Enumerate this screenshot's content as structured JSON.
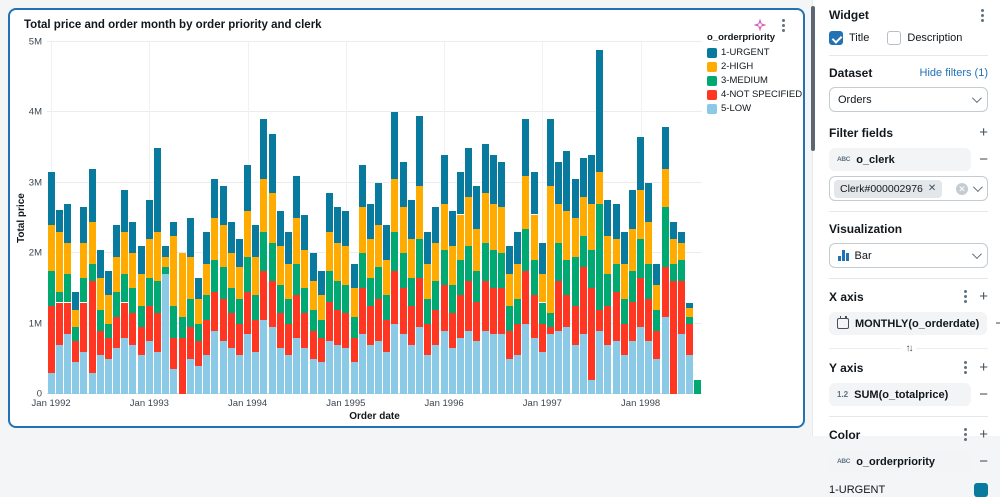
{
  "chart": {
    "title": "Total price and order month by order priority and clerk",
    "legend_title": "o_orderpriority",
    "xlabel": "Order date",
    "ylabel": "Total price"
  },
  "chart_data": {
    "type": "bar",
    "stacked": true,
    "title": "Total price and order month by order priority and clerk",
    "xlabel": "Order date",
    "ylabel": "Total price",
    "unit": "millions USD",
    "ylim_m": [
      0,
      5
    ],
    "yticks": [
      "0",
      "1M",
      "2M",
      "3M",
      "4M",
      "5M"
    ],
    "xtick_indices": [
      0,
      12,
      24,
      36,
      48,
      60,
      72
    ],
    "xtick_labels": [
      "Jan 1992",
      "Jan 1993",
      "Jan 1994",
      "Jan 1995",
      "Jan 1996",
      "Jan 1997",
      "Jan 1998"
    ],
    "legend_position": "top-right",
    "grid": true,
    "stack_bottom_to_top": [
      "5-LOW",
      "4-NOT SPECIFIED",
      "3-MEDIUM",
      "2-HIGH",
      "1-URGENT"
    ],
    "colors": {
      "1-URGENT": "#077a9d",
      "2-HIGH": "#ffab00",
      "3-MEDIUM": "#00a972",
      "4-NOT SPECIFIED": "#ff3621",
      "5-LOW": "#8bcae7"
    },
    "x": [
      "Jan 1992",
      "Feb 1992",
      "Mar 1992",
      "Apr 1992",
      "May 1992",
      "Jun 1992",
      "Jul 1992",
      "Aug 1992",
      "Sep 1992",
      "Oct 1992",
      "Nov 1992",
      "Dec 1992",
      "Jan 1993",
      "Feb 1993",
      "Mar 1993",
      "Apr 1993",
      "May 1993",
      "Jun 1993",
      "Jul 1993",
      "Aug 1993",
      "Sep 1993",
      "Oct 1993",
      "Nov 1993",
      "Dec 1993",
      "Jan 1994",
      "Feb 1994",
      "Mar 1994",
      "Apr 1994",
      "May 1994",
      "Jun 1994",
      "Jul 1994",
      "Aug 1994",
      "Sep 1994",
      "Oct 1994",
      "Nov 1994",
      "Dec 1994",
      "Jan 1995",
      "Feb 1995",
      "Mar 1995",
      "Apr 1995",
      "May 1995",
      "Jun 1995",
      "Jul 1995",
      "Aug 1995",
      "Sep 1995",
      "Oct 1995",
      "Nov 1995",
      "Dec 1995",
      "Jan 1996",
      "Feb 1996",
      "Mar 1996",
      "Apr 1996",
      "May 1996",
      "Jun 1996",
      "Jul 1996",
      "Aug 1996",
      "Sep 1996",
      "Oct 1996",
      "Nov 1996",
      "Dec 1996",
      "Jan 1997",
      "Feb 1997",
      "Mar 1997",
      "Apr 1997",
      "May 1997",
      "Jun 1997",
      "Jul 1997",
      "Aug 1997",
      "Sep 1997",
      "Oct 1997",
      "Nov 1997",
      "Dec 1997",
      "Jan 1998",
      "Feb 1998",
      "Mar 1998",
      "Apr 1998",
      "May 1998",
      "Jun 1998",
      "Jul 1998",
      "Aug 1998"
    ],
    "series": [
      {
        "name": "1-URGENT",
        "values_m": [
          0.75,
          0.32,
          0.55,
          0.25,
          0.5,
          0.75,
          0.4,
          0.35,
          0.45,
          0.6,
          0.45,
          0.4,
          0.55,
          1.2,
          0.15,
          0.2,
          0.0,
          0.55,
          0.3,
          0.45,
          0.55,
          0.55,
          0.45,
          0.4,
          0.65,
          0.45,
          0.85,
          0.85,
          0.5,
          0.45,
          0.6,
          0.5,
          0.4,
          0.35,
          0.55,
          0.5,
          0.5,
          0.35,
          0.6,
          0.5,
          0.6,
          0.5,
          0.95,
          0.65,
          0.55,
          1.0,
          0.45,
          0.5,
          0.7,
          0.5,
          0.6,
          0.7,
          0.6,
          0.7,
          0.7,
          0.65,
          0.4,
          0.45,
          0.8,
          0.6,
          0.45,
          0.95,
          0.6,
          0.85,
          0.55,
          0.55,
          0.7,
          1.73,
          0.5,
          0.5,
          0.45,
          0.55,
          0.75,
          0.55,
          0.3,
          0.6,
          0.25,
          0.15,
          0.08,
          0.0
        ]
      },
      {
        "name": "2-HIGH",
        "values_m": [
          0.65,
          0.85,
          0.45,
          0.25,
          0.5,
          0.6,
          0.45,
          0.4,
          0.5,
          0.6,
          0.5,
          0.45,
          0.55,
          0.7,
          0.15,
          1.0,
          0.9,
          0.6,
          0.35,
          0.45,
          0.6,
          0.6,
          0.5,
          0.45,
          0.65,
          0.55,
          0.75,
          0.7,
          0.55,
          0.5,
          0.65,
          0.55,
          0.4,
          0.35,
          0.55,
          0.55,
          0.55,
          0.4,
          0.65,
          0.55,
          0.6,
          0.5,
          0.75,
          0.65,
          0.55,
          0.75,
          0.5,
          0.55,
          0.65,
          0.55,
          0.65,
          0.7,
          0.6,
          0.7,
          0.65,
          0.65,
          0.45,
          0.5,
          0.75,
          0.65,
          0.4,
          1.8,
          0.55,
          0.7,
          0.55,
          0.55,
          0.65,
          0.45,
          0.55,
          0.35,
          0.5,
          0.6,
          0.7,
          0.6,
          0.35,
          0.55,
          0.35,
          0.25,
          0.12,
          0.0
        ]
      },
      {
        "name": "3-MEDIUM",
        "values_m": [
          0.5,
          0.15,
          0.4,
          0.2,
          0.35,
          0.25,
          0.3,
          0.2,
          0.35,
          0.4,
          0.35,
          0.3,
          0.4,
          0.45,
          0.1,
          0.45,
          0.3,
          0.4,
          0.25,
          0.35,
          0.45,
          0.45,
          0.35,
          0.35,
          0.5,
          0.35,
          0.55,
          0.55,
          0.4,
          0.35,
          0.45,
          0.35,
          0.3,
          0.25,
          0.45,
          0.4,
          0.4,
          0.3,
          0.5,
          0.4,
          0.45,
          0.35,
          0.55,
          0.5,
          0.4,
          0.55,
          0.35,
          0.4,
          0.5,
          0.4,
          0.5,
          0.5,
          0.45,
          0.55,
          0.55,
          0.5,
          0.35,
          0.35,
          0.6,
          0.5,
          0.3,
          0.2,
          0.55,
          0.5,
          0.7,
          0.45,
          0.55,
          1.5,
          0.45,
          0.4,
          0.35,
          0.45,
          0.55,
          0.5,
          0.3,
          0.85,
          0.25,
          0.3,
          0.1,
          0.2
        ]
      },
      {
        "name": "4-NOT SPECIFIED",
        "values_m": [
          0.95,
          0.6,
          0.45,
          0.3,
          0.7,
          1.3,
          0.35,
          0.3,
          0.45,
          0.5,
          0.45,
          0.4,
          0.5,
          0.55,
          0.0,
          0.45,
          0.8,
          0.45,
          0.35,
          0.5,
          0.55,
          0.6,
          0.5,
          0.45,
          0.6,
          0.45,
          0.7,
          0.65,
          0.5,
          0.45,
          0.6,
          0.5,
          0.4,
          0.35,
          0.55,
          0.5,
          0.5,
          0.35,
          0.65,
          0.55,
          0.6,
          0.45,
          0.75,
          0.65,
          0.55,
          0.7,
          0.45,
          0.5,
          0.65,
          0.5,
          0.6,
          0.7,
          0.55,
          0.7,
          0.65,
          0.65,
          0.4,
          0.45,
          0.75,
          0.6,
          0.4,
          0.1,
          0.7,
          0.45,
          0.55,
          0.95,
          1.3,
          0.3,
          0.55,
          0.7,
          0.45,
          0.55,
          0.7,
          0.6,
          0.4,
          0.7,
          1.6,
          0.75,
          0.45,
          0.0
        ]
      },
      {
        "name": "5-LOW",
        "values_m": [
          0.3,
          0.7,
          0.85,
          0.45,
          0.6,
          0.3,
          0.55,
          0.5,
          0.65,
          0.8,
          0.7,
          0.55,
          0.75,
          0.6,
          1.7,
          0.35,
          0.0,
          0.5,
          0.4,
          0.55,
          0.9,
          0.75,
          0.65,
          0.55,
          0.85,
          0.6,
          1.05,
          0.95,
          0.65,
          0.55,
          0.8,
          0.65,
          0.5,
          0.45,
          0.75,
          0.7,
          0.65,
          0.45,
          0.85,
          0.7,
          0.75,
          0.6,
          1.0,
          0.85,
          0.7,
          0.95,
          0.55,
          0.7,
          0.9,
          0.65,
          0.8,
          0.9,
          0.75,
          0.9,
          0.85,
          0.85,
          0.5,
          0.55,
          1.0,
          0.8,
          0.6,
          0.85,
          0.9,
          0.95,
          0.7,
          0.85,
          0.2,
          0.9,
          0.7,
          0.75,
          0.55,
          0.75,
          0.95,
          0.75,
          0.5,
          1.1,
          0.0,
          0.85,
          0.55,
          0.0
        ]
      }
    ]
  },
  "panel": {
    "widget_title": "Widget",
    "title_checkbox_label": "Title",
    "description_checkbox_label": "Description",
    "dataset_label": "Dataset",
    "hide_filters_link": "Hide filters (1)",
    "dataset_value": "Orders",
    "filter_fields_label": "Filter fields",
    "filter_field_name": "o_clerk",
    "filter_chip_value": "Clerk#000002976",
    "chip_remove_glyph": "✕",
    "clear_glyph": "✕",
    "visualization_label": "Visualization",
    "visualization_value": "Bar",
    "x_axis_label": "X axis",
    "x_axis_field": "MONTHLY(o_orderdate)",
    "swap_glyph": "↑↓",
    "y_axis_label": "Y axis",
    "y_axis_field": "SUM(o_totalprice)",
    "color_label": "Color",
    "color_field": "o_orderpriority",
    "color_item_label": "1-URGENT",
    "string_type_glyph": "ABC",
    "number_type_glyph": "1.2",
    "plus_glyph": "+",
    "minus_glyph": "−",
    "accent_color": "#2272b4"
  }
}
